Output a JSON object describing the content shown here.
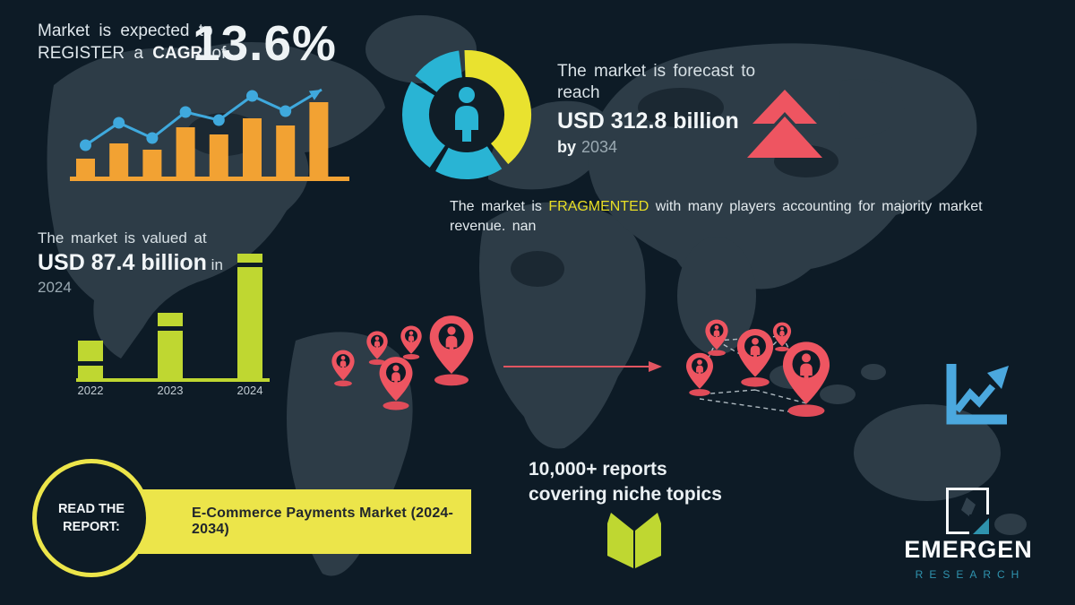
{
  "colors": {
    "background": "#0d1b26",
    "map_land": "#2d3c47",
    "map_patch": "#1b2832",
    "orange": "#f2a233",
    "blue": "#3fa9dd",
    "teal": "#29b4d4",
    "donut_yellow": "#e9e22f",
    "banner_yellow": "#ece54a",
    "lime": "#bfd731",
    "red": "#ee5561",
    "text_light": "#e9eef1",
    "text_muted": "#9aa9b2"
  },
  "cagr_block": {
    "line1": "Market is expected to",
    "line2_a": "REGISTER a ",
    "line2_b": "CAGR",
    "line2_c": " of",
    "value": "13.6%"
  },
  "forecast_block": {
    "line1": "The market is forecast to",
    "line2": "reach",
    "value": "USD 312.8 billion",
    "by_label": "by",
    "by_year": "2034"
  },
  "fragmented_block": {
    "pre": "The market is ",
    "highlight": "FRAGMENTED",
    "post": " with many players accounting for majority market revenue. nan"
  },
  "valuation_block": {
    "line1": "The market is valued at",
    "value": "USD 87.4 billion",
    "suffix": " in",
    "year": "2024"
  },
  "report_block": {
    "cta": "READ THE REPORT:",
    "title": "E-Commerce Payments Market (2024-2034)"
  },
  "reports_block": {
    "line1": "10,000+ reports",
    "line2": "covering niche topics"
  },
  "brand": {
    "name": "EMERGEN",
    "sub": "RESEARCH"
  },
  "chart_data": [
    {
      "id": "growth-trend",
      "type": "bar",
      "title": "CAGR growth trend (decorative, unlabeled axes)",
      "bar_color": "#f2a233",
      "line_color": "#3fa9dd",
      "bars": [
        20,
        37,
        30,
        55,
        47,
        65,
        57,
        83
      ],
      "line": [
        35,
        60,
        43,
        72,
        63,
        90,
        73
      ],
      "note": "8 orange bars rising with zigzag blue trend line over first 7 bars ending in an up-right arrow; units are relative heights (px)"
    },
    {
      "id": "market-valuation",
      "type": "bar",
      "title": "Market valuation by year",
      "categories": [
        "2022",
        "2023",
        "2024"
      ],
      "values": [
        42,
        73,
        139
      ],
      "stripe_offsets": [
        23,
        15,
        10
      ],
      "bar_color": "#bfd731",
      "note": "relative bar heights in px; 2024 bar corresponds to USD 87.4 billion; each bar has a dark stripe near its top; no y-axis shown"
    },
    {
      "id": "market-share-donut",
      "type": "donut",
      "title": "Market share (fragmented, unlabeled)",
      "center_icon": "person-icon",
      "segments": [
        {
          "color": "#e9e22f",
          "start": -2,
          "end": 140,
          "approx_share_pct": 39
        },
        {
          "color": "#29b4d4",
          "start": 147,
          "end": 209,
          "approx_share_pct": 17
        },
        {
          "color": "#29b4d4",
          "start": 215,
          "end": 301,
          "approx_share_pct": 24
        },
        {
          "color": "#29b4d4",
          "start": 307,
          "end": 353,
          "approx_share_pct": 13
        }
      ]
    }
  ]
}
